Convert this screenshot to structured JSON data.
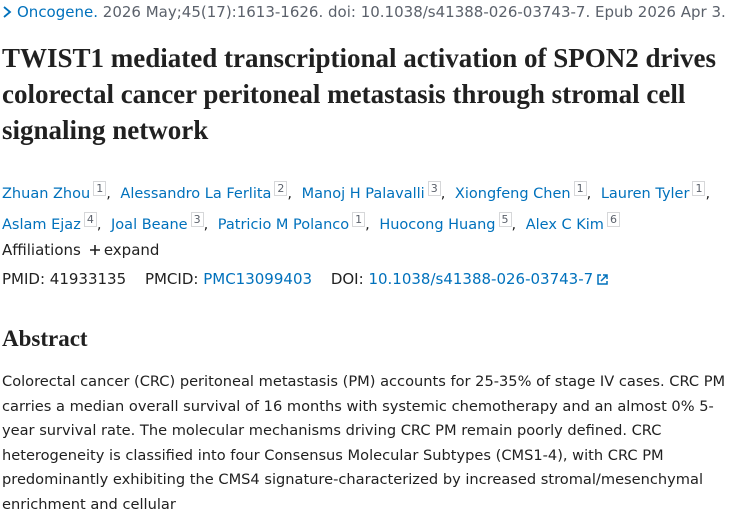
{
  "citation": {
    "journal": "Oncogene.",
    "details": "2026 May;45(17):1613-1626. doi: 10.1038/s41388-026-03743-7. Epub 2026 Apr 3."
  },
  "title": "TWIST1 mediated transcriptional activation of SPON2 drives colorectal cancer peritoneal metastasis through stromal cell signaling network",
  "authors": [
    {
      "name": "Zhuan Zhou",
      "aff": "1",
      "sep": ","
    },
    {
      "name": "Alessandro La Ferlita",
      "aff": "2",
      "sep": ","
    },
    {
      "name": "Manoj H Palavalli",
      "aff": "3",
      "sep": ","
    },
    {
      "name": "Xiongfeng Chen",
      "aff": "1",
      "sep": ","
    },
    {
      "name": "Lauren Tyler",
      "aff": "1",
      "sep": ","
    },
    {
      "name": "Aslam Ejaz",
      "aff": "4",
      "sep": ","
    },
    {
      "name": "Joal Beane",
      "aff": "3",
      "sep": ","
    },
    {
      "name": "Patricio M Polanco",
      "aff": "1",
      "sep": ","
    },
    {
      "name": "Huocong Huang",
      "aff": "5",
      "sep": ","
    },
    {
      "name": "Alex C Kim",
      "aff": "6"
    }
  ],
  "affiliations": {
    "label": "Affiliations",
    "toggle": "expand"
  },
  "identifiers": {
    "pmid_label": "PMID:",
    "pmid": "41933135",
    "pmcid_label": "PMCID:",
    "pmcid": "PMC13099403",
    "doi_label": "DOI:",
    "doi": "10.1038/s41388-026-03743-7"
  },
  "abstract": {
    "heading": "Abstract",
    "text": "Colorectal cancer (CRC) peritoneal metastasis (PM) accounts for 25-35% of stage IV cases. CRC PM carries a median overall survival of 16 months with systemic chemotherapy and an almost 0% 5-year survival rate. The molecular mechanisms driving CRC PM remain poorly defined. CRC heterogeneity is classified into four Consensus Molecular Subtypes (CMS1-4), with CRC PM predominantly exhibiting the CMS4 signature-characterized by increased stromal/mesenchymal enrichment and cellular"
  }
}
